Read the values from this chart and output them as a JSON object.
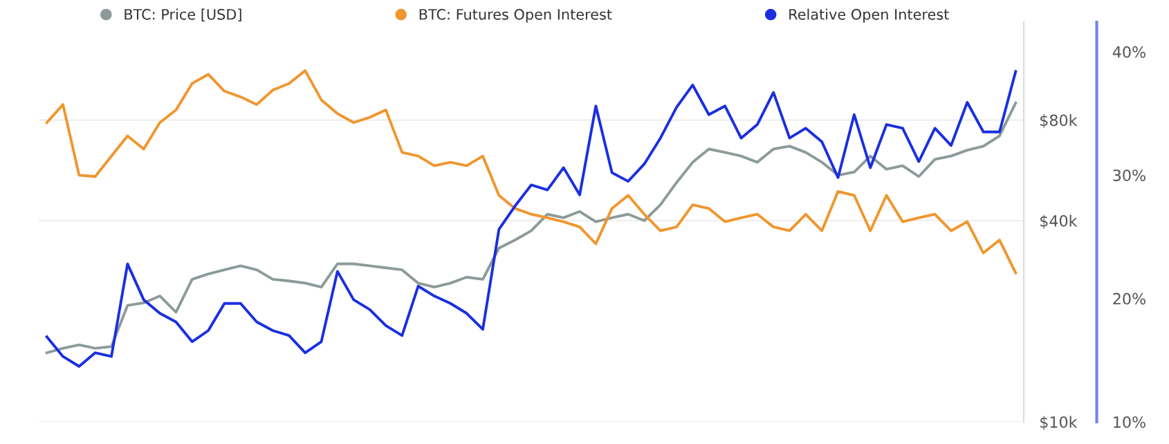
{
  "chart_data": {
    "type": "line",
    "categories": [
      null,
      null,
      null,
      null,
      null,
      null,
      null,
      null,
      null,
      null,
      null,
      null,
      null,
      null,
      null,
      null,
      null,
      null,
      null,
      null,
      null,
      null,
      null,
      null,
      null,
      null,
      null,
      null,
      null,
      null,
      null,
      null,
      null,
      null,
      null,
      null,
      null,
      null,
      null,
      null,
      null,
      null,
      null,
      null,
      null,
      null,
      null,
      null,
      null,
      null,
      null,
      null,
      null,
      null,
      null,
      null,
      null,
      null,
      null,
      null,
      null
    ],
    "series": [
      {
        "name": "BTC: Price [USD]",
        "color": "#8c9a9a",
        "axis": "y",
        "values": [
          16100,
          16600,
          17000,
          16600,
          16800,
          22300,
          22700,
          23800,
          21300,
          26700,
          27700,
          28500,
          29300,
          28500,
          26700,
          26400,
          26000,
          25300,
          29700,
          29700,
          29300,
          28900,
          28500,
          26000,
          25300,
          26000,
          27100,
          26700,
          33100,
          35000,
          37300,
          41800,
          40800,
          42600,
          39700,
          40800,
          41800,
          40000,
          44600,
          52000,
          59800,
          65500,
          64000,
          62400,
          59800,
          65500,
          66800,
          64000,
          59800,
          54700,
          55900,
          62400,
          57000,
          58400,
          54200,
          61000,
          62400,
          65000,
          66800,
          71700,
          90000
        ]
      },
      {
        "name": "BTC: Futures Open Interest",
        "color": "#f0962e",
        "axis": "y",
        "values": [
          78600,
          89000,
          54700,
          54200,
          62400,
          71700,
          65500,
          78600,
          85700,
          102900,
          109600,
          97600,
          93800,
          89000,
          98300,
          102900,
          112400,
          91900,
          83600,
          78600,
          81500,
          85700,
          64000,
          62400,
          58400,
          59800,
          58400,
          62400,
          47600,
          43500,
          41800,
          40800,
          39700,
          38300,
          34100,
          43500,
          47600,
          41800,
          37300,
          38300,
          44600,
          43500,
          39700,
          40800,
          41800,
          38300,
          37300,
          41800,
          37300,
          48900,
          47600,
          37300,
          47600,
          39700,
          40800,
          41800,
          37300,
          39700,
          32000,
          35000,
          27900
        ]
      },
      {
        "name": "Relative Open Interest",
        "color": "#1a2fe0",
        "axis": "y2",
        "values": [
          16.9,
          15.3,
          14.5,
          15.6,
          15.3,
          22.8,
          19.9,
          18.8,
          18.1,
          16.5,
          17.4,
          19.6,
          19.6,
          18.1,
          17.4,
          17.0,
          15.6,
          16.5,
          22.2,
          19.9,
          19.1,
          17.8,
          17.0,
          21.0,
          20.2,
          19.6,
          18.8,
          17.5,
          25.6,
          27.5,
          29.2,
          28.8,
          30.6,
          28.4,
          35.6,
          30.2,
          29.5,
          30.9,
          33.0,
          35.5,
          37.3,
          34.9,
          35.6,
          33.0,
          34.1,
          36.7,
          33.0,
          33.8,
          32.7,
          29.8,
          34.9,
          30.6,
          34.1,
          33.8,
          31.1,
          33.8,
          32.4,
          35.9,
          33.5,
          33.5,
          38.4
        ]
      }
    ],
    "log": "y",
    "ylim": [
      10000,
      157000
    ],
    "yticks": [
      {
        "value": 10000,
        "label": "$10k"
      },
      {
        "value": 40000,
        "label": "$40k"
      },
      {
        "value": 80000,
        "label": "$80k"
      }
    ],
    "y2lim": [
      10,
      42.4
    ],
    "y2ticks": [
      {
        "value": 10,
        "label": "10%"
      },
      {
        "value": 20,
        "label": "20%"
      },
      {
        "value": 30,
        "label": "30%"
      },
      {
        "value": 40,
        "label": "40%"
      }
    ],
    "tick_labels": "y",
    "grid": "y",
    "legend": "top left",
    "marker": "none",
    "line_style": "solid"
  }
}
